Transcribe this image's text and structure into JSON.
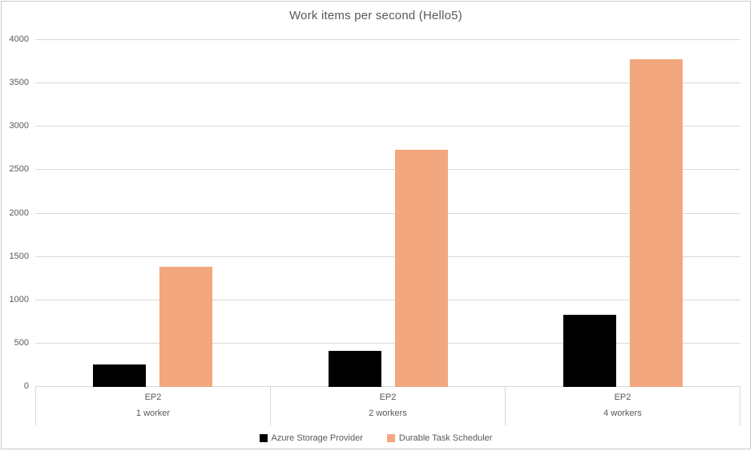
{
  "chart_data": {
    "type": "bar",
    "title": "Work items per second (Hello5)",
    "xlabel": "",
    "ylabel": "",
    "ylim": [
      0,
      4000
    ],
    "yticks": [
      0,
      500,
      1000,
      1500,
      2000,
      2500,
      3000,
      3500,
      4000
    ],
    "grid": true,
    "legend_position": "bottom",
    "categories": [
      {
        "plan": "EP2",
        "workers": "1 worker"
      },
      {
        "plan": "EP2",
        "workers": "2 workers"
      },
      {
        "plan": "EP2",
        "workers": "4 workers"
      }
    ],
    "series": [
      {
        "name": "Azure Storage Provider",
        "color": "#000000",
        "values": [
          255,
          415,
          835
        ]
      },
      {
        "name": "Durable Task Scheduler",
        "color": "#F2A77E",
        "values": [
          1390,
          2730,
          3775
        ]
      }
    ]
  },
  "colors": {
    "text": "#595959",
    "gridline": "#D9D9D9",
    "frame_border": "#C9C9C9",
    "background": "#FFFFFF"
  }
}
